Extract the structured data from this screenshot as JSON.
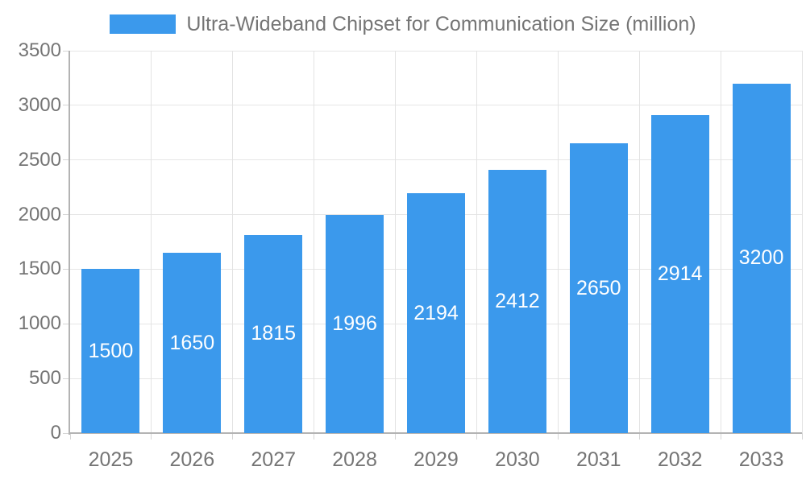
{
  "legend": {
    "label": "Ultra-Wideband Chipset for Communication Size (million)"
  },
  "chart_data": {
    "type": "bar",
    "title": "Ultra-Wideband Chipset for Communication Size (million)",
    "categories": [
      "2025",
      "2026",
      "2027",
      "2028",
      "2029",
      "2030",
      "2031",
      "2032",
      "2033"
    ],
    "values": [
      1500,
      1650,
      1815,
      1996,
      2194,
      2412,
      2650,
      2914,
      3200
    ],
    "xlabel": "",
    "ylabel": "",
    "ylim": [
      0,
      3500
    ],
    "ytick_step": 500,
    "ytick_labels": [
      "0",
      "500",
      "1000",
      "1500",
      "2000",
      "2500",
      "3000",
      "3500"
    ],
    "grid": true,
    "legend_position": "top",
    "value_labels": "inside-center",
    "colors": {
      "bar": "#3B99EC",
      "legend_text": "#757575",
      "tick_text": "#757575",
      "value_text": "#FFFFFF",
      "grid_h": "#E6E6E6",
      "grid_v": "#E3E3E3",
      "axis": "#B3B3B3",
      "tick_mark": "#D6D6D6",
      "background": "#FFFFFF"
    }
  }
}
